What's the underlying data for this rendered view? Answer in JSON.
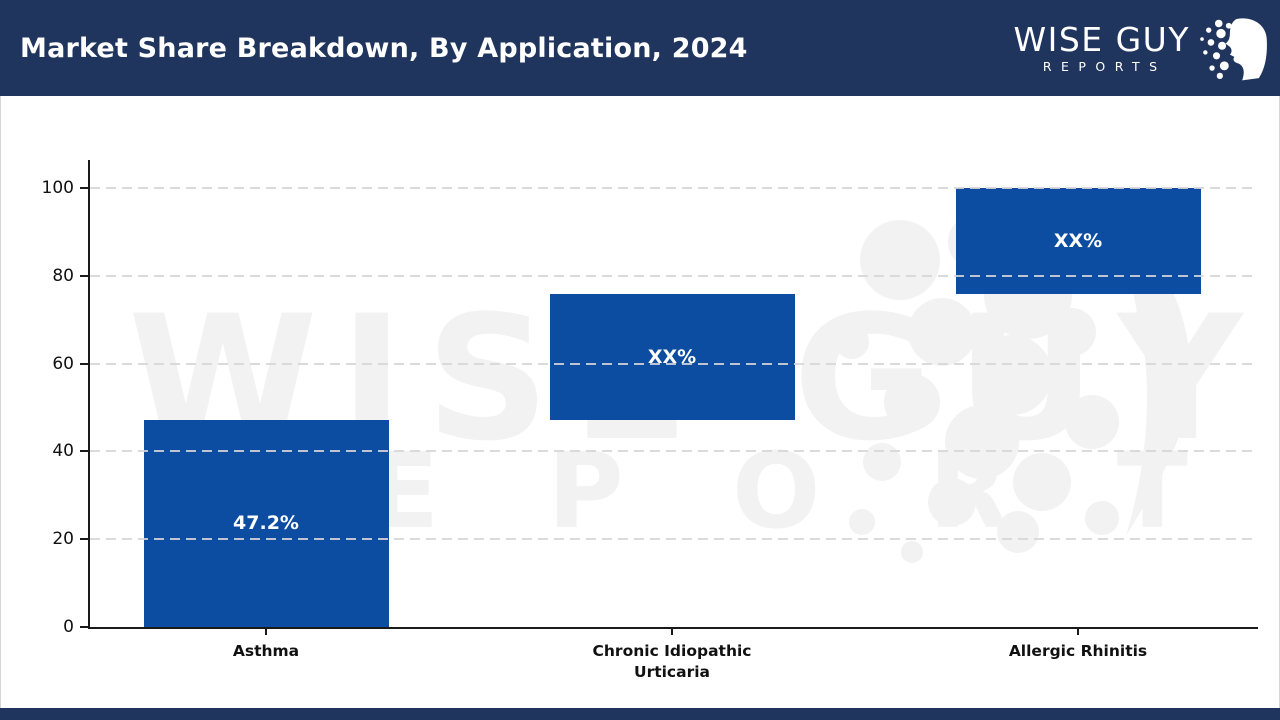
{
  "header": {
    "title": "Market Share Breakdown, By Application, 2024",
    "logo_line1": "WISE GUY",
    "logo_line2": "REPORTS"
  },
  "watermark": {
    "line1": "WISE GUY",
    "line2": "R E P O R T S"
  },
  "chart_data": {
    "type": "bar",
    "subtype": "floating_stacked_segments",
    "title": "Market Share Breakdown, By Application, 2024",
    "categories": [
      "Asthma",
      "Chronic Idiopathic Urticaria",
      "Allergic Rhinitis"
    ],
    "segments": [
      {
        "category": "Asthma",
        "start": 0,
        "end": 47.2,
        "label": "47.2%"
      },
      {
        "category": "Chronic Idiopathic Urticaria",
        "start": 47.2,
        "end": 75.8,
        "label": "XX%"
      },
      {
        "category": "Allergic Rhinitis",
        "start": 75.8,
        "end": 100,
        "label": "XX%"
      }
    ],
    "xlabel": "",
    "ylabel": "",
    "ylim": [
      0,
      100
    ],
    "yticks": [
      0,
      20,
      40,
      60,
      80,
      100
    ],
    "grid": "horizontal-dashed-on-top",
    "legend": "none",
    "colors": {
      "bar": "#0C4DA2",
      "bar_label": "#FFFFFF",
      "header_bg": "#20355E",
      "grid_line": "#D6D6D6",
      "axis": "#1A1A1A"
    }
  }
}
